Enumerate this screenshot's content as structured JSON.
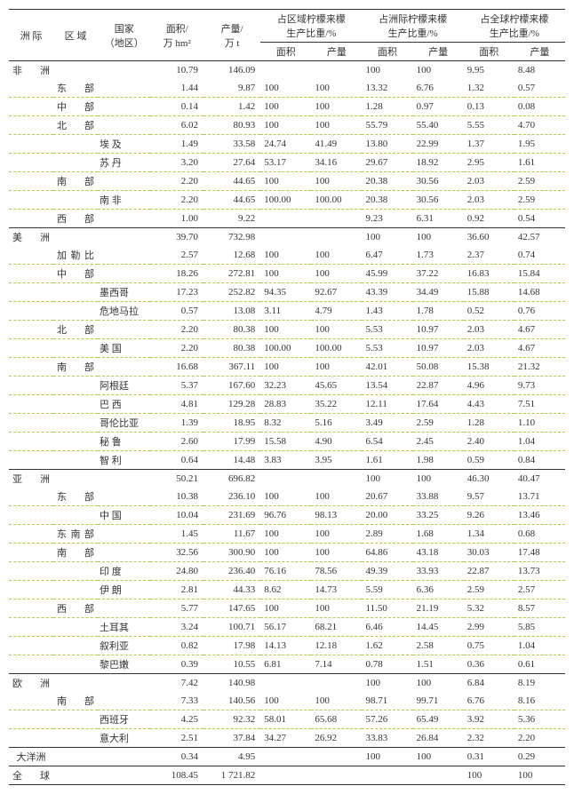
{
  "headers": {
    "col1": "洲 际",
    "col2": "区 域",
    "col3": "国家\n（地区）",
    "area": "面积/\n万 hm²",
    "prod": "产量/\n万 t",
    "grp1": "占区域柠檬来檬\n生产比重/%",
    "grp2": "占洲际柠檬来檬\n生产比重/%",
    "grp3": "占全球柠檬来檬\n生产比重/%",
    "sub_area": "面积",
    "sub_prod": "产量"
  },
  "rows": [
    {
      "t": "sep",
      "r": "非 洲",
      "a": "10.79",
      "p": "146.09",
      "p2a": "100",
      "p2p": "100",
      "p3a": "9.95",
      "p3p": "8.48"
    },
    {
      "t": "d",
      "s": "东 部",
      "a": "1.44",
      "p": "9.87",
      "p1a": "100",
      "p1p": "100",
      "p2a": "13.32",
      "p2p": "6.76",
      "p3a": "1.32",
      "p3p": "0.57"
    },
    {
      "t": "d",
      "s": "中 部",
      "a": "0.14",
      "p": "1.42",
      "p1a": "100",
      "p1p": "100",
      "p2a": "1.28",
      "p2p": "0.97",
      "p3a": "0.13",
      "p3p": "0.08"
    },
    {
      "t": "d",
      "s": "北 部",
      "a": "6.02",
      "p": "80.93",
      "p1a": "100",
      "p1p": "100",
      "p2a": "55.79",
      "p2p": "55.40",
      "p3a": "5.55",
      "p3p": "4.70"
    },
    {
      "t": "d",
      "c": "埃 及",
      "a": "1.49",
      "p": "33.58",
      "p1a": "24.74",
      "p1p": "41.49",
      "p2a": "13.80",
      "p2p": "22.99",
      "p3a": "1.37",
      "p3p": "1.95"
    },
    {
      "t": "d",
      "c": "苏 丹",
      "a": "3.20",
      "p": "27.64",
      "p1a": "53.17",
      "p1p": "34.16",
      "p2a": "29.67",
      "p2p": "18.92",
      "p3a": "2.95",
      "p3p": "1.61"
    },
    {
      "t": "d",
      "s": "南 部",
      "a": "2.20",
      "p": "44.65",
      "p1a": "100",
      "p1p": "100",
      "p2a": "20.38",
      "p2p": "30.56",
      "p3a": "2.03",
      "p3p": "2.59"
    },
    {
      "t": "d",
      "c": "南 非",
      "a": "2.20",
      "p": "44.65",
      "p1a": "100.00",
      "p1p": "100.00",
      "p2a": "20.38",
      "p2p": "30.56",
      "p3a": "2.03",
      "p3p": "2.59"
    },
    {
      "t": "n",
      "s": "西 部",
      "a": "1.00",
      "p": "9.22",
      "p2a": "9.23",
      "p2p": "6.31",
      "p3a": "0.92",
      "p3p": "0.54"
    },
    {
      "t": "sep",
      "r": "美 洲",
      "a": "39.70",
      "p": "732.98",
      "p2a": "100",
      "p2p": "100",
      "p3a": "36.60",
      "p3p": "42.57"
    },
    {
      "t": "d",
      "s": "加勒比",
      "a": "2.57",
      "p": "12.68",
      "p1a": "100",
      "p1p": "100",
      "p2a": "6.47",
      "p2p": "1.73",
      "p3a": "2.37",
      "p3p": "0.74"
    },
    {
      "t": "d",
      "s": "中 部",
      "a": "18.26",
      "p": "272.81",
      "p1a": "100",
      "p1p": "100",
      "p2a": "45.99",
      "p2p": "37.22",
      "p3a": "16.83",
      "p3p": "15.84"
    },
    {
      "t": "d",
      "c": "墨西哥",
      "a": "17.23",
      "p": "252.82",
      "p1a": "94.35",
      "p1p": "92.67",
      "p2a": "43.39",
      "p2p": "34.49",
      "p3a": "15.88",
      "p3p": "14.68"
    },
    {
      "t": "d",
      "c": "危地马拉",
      "a": "0.57",
      "p": "13.08",
      "p1a": "3.11",
      "p1p": "4.79",
      "p2a": "1.43",
      "p2p": "1.78",
      "p3a": "0.52",
      "p3p": "0.76"
    },
    {
      "t": "d",
      "s": "北 部",
      "a": "2.20",
      "p": "80.38",
      "p1a": "100",
      "p1p": "100",
      "p2a": "5.53",
      "p2p": "10.97",
      "p3a": "2.03",
      "p3p": "4.67"
    },
    {
      "t": "d",
      "c": "美 国",
      "a": "2.20",
      "p": "80.38",
      "p1a": "100.00",
      "p1p": "100.00",
      "p2a": "5.53",
      "p2p": "10.97",
      "p3a": "2.03",
      "p3p": "4.67"
    },
    {
      "t": "d",
      "s": "南 部",
      "a": "16.68",
      "p": "367.11",
      "p1a": "100",
      "p1p": "100",
      "p2a": "42.01",
      "p2p": "50.08",
      "p3a": "15.38",
      "p3p": "21.32"
    },
    {
      "t": "d",
      "c": "阿根廷",
      "a": "5.37",
      "p": "167.60",
      "p1a": "32.23",
      "p1p": "45.65",
      "p2a": "13.54",
      "p2p": "22.87",
      "p3a": "4.96",
      "p3p": "9.73"
    },
    {
      "t": "d",
      "c": "巴 西",
      "a": "4.81",
      "p": "129.28",
      "p1a": "28.83",
      "p1p": "35.22",
      "p2a": "12.11",
      "p2p": "17.64",
      "p3a": "4.43",
      "p3p": "7.51"
    },
    {
      "t": "d",
      "c": "哥伦比亚",
      "a": "1.39",
      "p": "18.95",
      "p1a": "8.32",
      "p1p": "5.16",
      "p2a": "3.49",
      "p2p": "2.59",
      "p3a": "1.28",
      "p3p": "1.10"
    },
    {
      "t": "d",
      "c": "秘 鲁",
      "a": "2.60",
      "p": "17.99",
      "p1a": "15.58",
      "p1p": "4.90",
      "p2a": "6.54",
      "p2p": "2.45",
      "p3a": "2.40",
      "p3p": "1.04"
    },
    {
      "t": "n",
      "c": "智 利",
      "a": "0.64",
      "p": "14.48",
      "p1a": "3.83",
      "p1p": "3.95",
      "p2a": "1.61",
      "p2p": "1.98",
      "p3a": "0.59",
      "p3p": "0.84"
    },
    {
      "t": "sep",
      "r": "亚 洲",
      "a": "50.21",
      "p": "696.82",
      "p2a": "100",
      "p2p": "100",
      "p3a": "46.30",
      "p3p": "40.47"
    },
    {
      "t": "d",
      "s": "东 部",
      "a": "10.38",
      "p": "236.10",
      "p1a": "100",
      "p1p": "100",
      "p2a": "20.67",
      "p2p": "33.88",
      "p3a": "9.57",
      "p3p": "13.71"
    },
    {
      "t": "d",
      "c": "中 国",
      "a": "10.04",
      "p": "231.69",
      "p1a": "96.76",
      "p1p": "98.13",
      "p2a": "20.00",
      "p2p": "33.25",
      "p3a": "9.26",
      "p3p": "13.46"
    },
    {
      "t": "d",
      "s": "东南部",
      "a": "1.45",
      "p": "11.67",
      "p1a": "100",
      "p1p": "100",
      "p2a": "2.89",
      "p2p": "1.68",
      "p3a": "1.34",
      "p3p": "0.68"
    },
    {
      "t": "d",
      "s": "南 部",
      "a": "32.56",
      "p": "300.90",
      "p1a": "100",
      "p1p": "100",
      "p2a": "64.86",
      "p2p": "43.18",
      "p3a": "30.03",
      "p3p": "17.48"
    },
    {
      "t": "d",
      "c": "印 度",
      "a": "24.80",
      "p": "236.40",
      "p1a": "76.16",
      "p1p": "78.56",
      "p2a": "49.39",
      "p2p": "33.93",
      "p3a": "22.87",
      "p3p": "13.73"
    },
    {
      "t": "d",
      "c": "伊 朗",
      "a": "2.81",
      "p": "44.33",
      "p1a": "8.62",
      "p1p": "14.73",
      "p2a": "5.59",
      "p2p": "6.36",
      "p3a": "2.59",
      "p3p": "2.57"
    },
    {
      "t": "d",
      "s": "西 部",
      "a": "5.77",
      "p": "147.65",
      "p1a": "100",
      "p1p": "100",
      "p2a": "11.50",
      "p2p": "21.19",
      "p3a": "5.32",
      "p3p": "8.57"
    },
    {
      "t": "d",
      "c": "土耳其",
      "a": "3.24",
      "p": "100.71",
      "p1a": "56.17",
      "p1p": "68.21",
      "p2a": "6.46",
      "p2p": "14.45",
      "p3a": "2.99",
      "p3p": "5.85"
    },
    {
      "t": "d",
      "c": "叙利亚",
      "a": "0.82",
      "p": "17.98",
      "p1a": "14.13",
      "p1p": "12.18",
      "p2a": "1.62",
      "p2p": "2.58",
      "p3a": "0.75",
      "p3p": "1.04"
    },
    {
      "t": "n",
      "c": "黎巴嫩",
      "a": "0.39",
      "p": "10.55",
      "p1a": "6.81",
      "p1p": "7.14",
      "p2a": "0.78",
      "p2p": "1.51",
      "p3a": "0.36",
      "p3p": "0.61"
    },
    {
      "t": "sep",
      "r": "欧 洲",
      "a": "7.42",
      "p": "140.98",
      "p2a": "100",
      "p2p": "100",
      "p3a": "6.84",
      "p3p": "8.19"
    },
    {
      "t": "d",
      "s": "南 部",
      "a": "7.33",
      "p": "140.56",
      "p1a": "100",
      "p1p": "100",
      "p2a": "98.71",
      "p2p": "99.71",
      "p3a": "6.76",
      "p3p": "8.16"
    },
    {
      "t": "d",
      "c": "西班牙",
      "a": "4.25",
      "p": "92.32",
      "p1a": "58.01",
      "p1p": "65.68",
      "p2a": "57.26",
      "p2p": "65.49",
      "p3a": "3.92",
      "p3p": "5.36"
    },
    {
      "t": "n",
      "c": "意大利",
      "a": "2.51",
      "p": "37.84",
      "p1a": "34.27",
      "p1p": "26.92",
      "p2a": "33.83",
      "p2p": "26.84",
      "p3a": "2.32",
      "p3p": "2.20"
    },
    {
      "t": "sep",
      "r": "大洋洲",
      "rplain": true,
      "a": "0.34",
      "p": "4.95",
      "p2a": "100",
      "p2p": "100",
      "p3a": "0.31",
      "p3p": "0.29"
    },
    {
      "t": "seplast",
      "r": "全 球",
      "a": "108.45",
      "p": "1 721.82",
      "p3a": "100",
      "p3p": "100"
    }
  ]
}
